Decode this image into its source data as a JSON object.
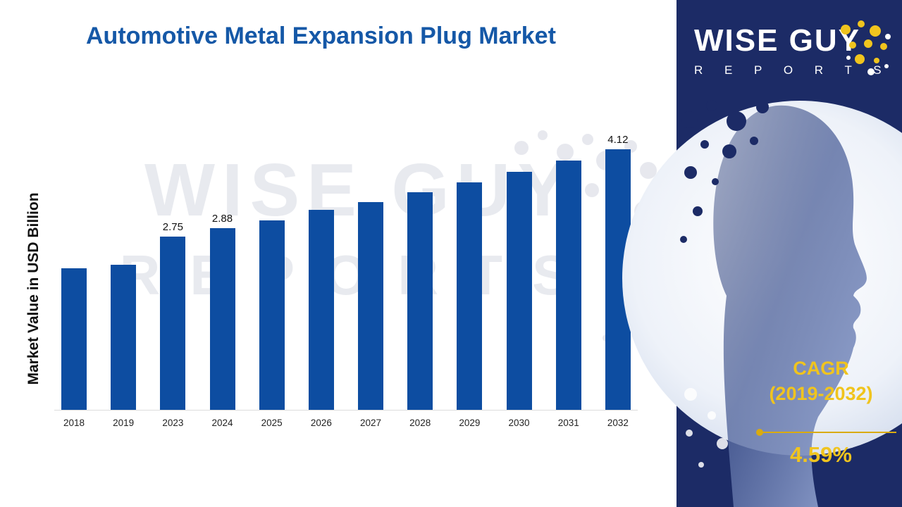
{
  "header": {
    "title": "Automotive Metal Expansion Plug Market"
  },
  "watermark": {
    "line1": "WISE GUY",
    "line2": "REPORTS"
  },
  "logo": {
    "name": "WISE GUY",
    "sub": "R E P O R T S"
  },
  "cagr": {
    "label": "CAGR",
    "range": "(2019-2032)",
    "value": "4.59%"
  },
  "colors": {
    "title_blue": "#1558a7",
    "bar_blue": "#0d4da1",
    "panel_navy": "#1c2b66",
    "accent_yellow": "#f0c41e"
  },
  "chart_data": {
    "type": "bar",
    "title": "Automotive Metal Expansion Plug Market",
    "xlabel": "",
    "ylabel": "Market Value in USD Billion",
    "categories": [
      "2018",
      "2019",
      "2023",
      "2024",
      "2025",
      "2026",
      "2027",
      "2028",
      "2029",
      "2030",
      "2031",
      "2032"
    ],
    "values": [
      2.25,
      2.3,
      2.75,
      2.88,
      3.0,
      3.17,
      3.29,
      3.44,
      3.6,
      3.77,
      3.95,
      4.12
    ],
    "data_labels": {
      "2023": "2.75",
      "2024": "2.88",
      "2032": "4.12"
    },
    "ylim": [
      0,
      4.5
    ],
    "grid": false,
    "legend": "none",
    "bar_color": "#0d4da1"
  }
}
